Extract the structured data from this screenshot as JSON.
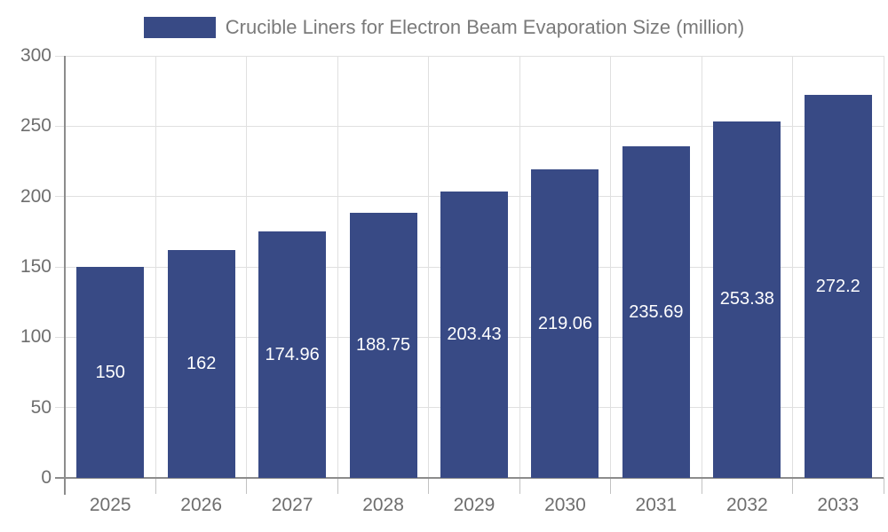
{
  "chart_data": {
    "type": "bar",
    "title": "Crucible Liners for Electron Beam Evaporation Size (million)",
    "categories": [
      "2025",
      "2026",
      "2027",
      "2028",
      "2029",
      "2030",
      "2031",
      "2032",
      "2033"
    ],
    "series": [
      {
        "name": "Crucible Liners for Electron Beam Evaporation Size (million)",
        "values": [
          150,
          162,
          174.96,
          188.75,
          203.43,
          219.06,
          235.69,
          253.38,
          272.2
        ]
      }
    ],
    "bar_labels": [
      "150",
      "162",
      "174.96",
      "188.75",
      "203.43",
      "219.06",
      "235.69",
      "253.38",
      "272.2"
    ],
    "xlabel": "",
    "ylabel": "",
    "ylim": [
      0,
      300
    ],
    "ytick_step": 50,
    "ytick_labels": [
      "0",
      "50",
      "100",
      "150",
      "200",
      "250",
      "300"
    ],
    "grid": true,
    "legend_position": "top-center",
    "colors": {
      "bar": "#384a85",
      "bar_label": "#ffffff",
      "axis_line": "#8c8c8c",
      "grid_line": "#e0e0e0",
      "x_tickmark": "#c2c2c2",
      "tick_text": "#6e6e6e",
      "title_text": "#7a7a7a",
      "background": "#ffffff"
    }
  }
}
